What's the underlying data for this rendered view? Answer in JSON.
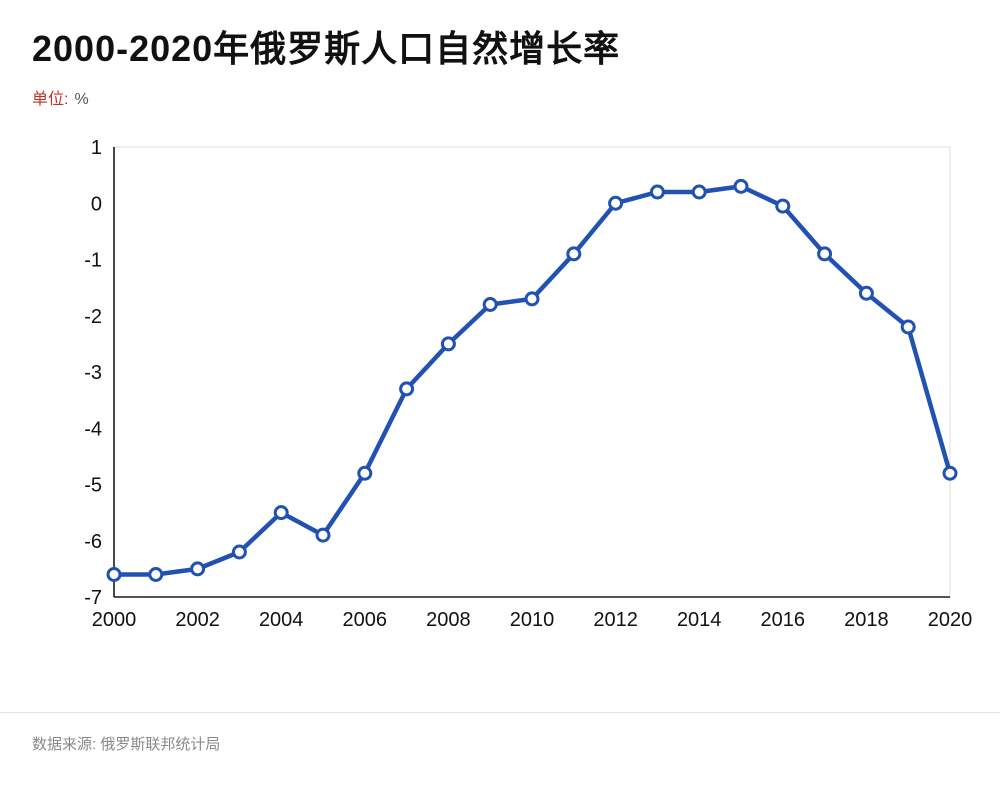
{
  "header": {
    "title": "2000-2020年俄罗斯人口自然增长率",
    "unit_label": "单位:",
    "unit_value": "%"
  },
  "footer": {
    "source": "数据来源: 俄罗斯联邦统计局"
  },
  "chart_data": {
    "type": "line",
    "title": "2000-2020年俄罗斯人口自然增长率",
    "unit": "%",
    "x": [
      2000,
      2001,
      2002,
      2003,
      2004,
      2005,
      2006,
      2007,
      2008,
      2009,
      2010,
      2011,
      2012,
      2013,
      2014,
      2015,
      2016,
      2017,
      2018,
      2019,
      2020
    ],
    "values": [
      -6.6,
      -6.6,
      -6.5,
      -6.2,
      -5.5,
      -5.9,
      -4.8,
      -3.3,
      -2.5,
      -1.8,
      -1.7,
      -0.9,
      0.0,
      0.2,
      0.2,
      0.3,
      -0.05,
      -0.9,
      -1.6,
      -2.2,
      -4.8
    ],
    "xticks": [
      2000,
      2002,
      2004,
      2006,
      2008,
      2010,
      2012,
      2014,
      2016,
      2018,
      2020
    ],
    "yticks": [
      1,
      0,
      -1,
      -2,
      -3,
      -4,
      -5,
      -6,
      -7
    ],
    "ylim": [
      -7,
      1
    ],
    "xlim": [
      2000,
      2020
    ],
    "xlabel": "",
    "ylabel": "",
    "grid": false,
    "legend": "none",
    "line_color": "#2152b2",
    "marker_fill": "#ffffff",
    "axis_color": "#1a1a1a",
    "border_color": "#dcdcdc"
  }
}
